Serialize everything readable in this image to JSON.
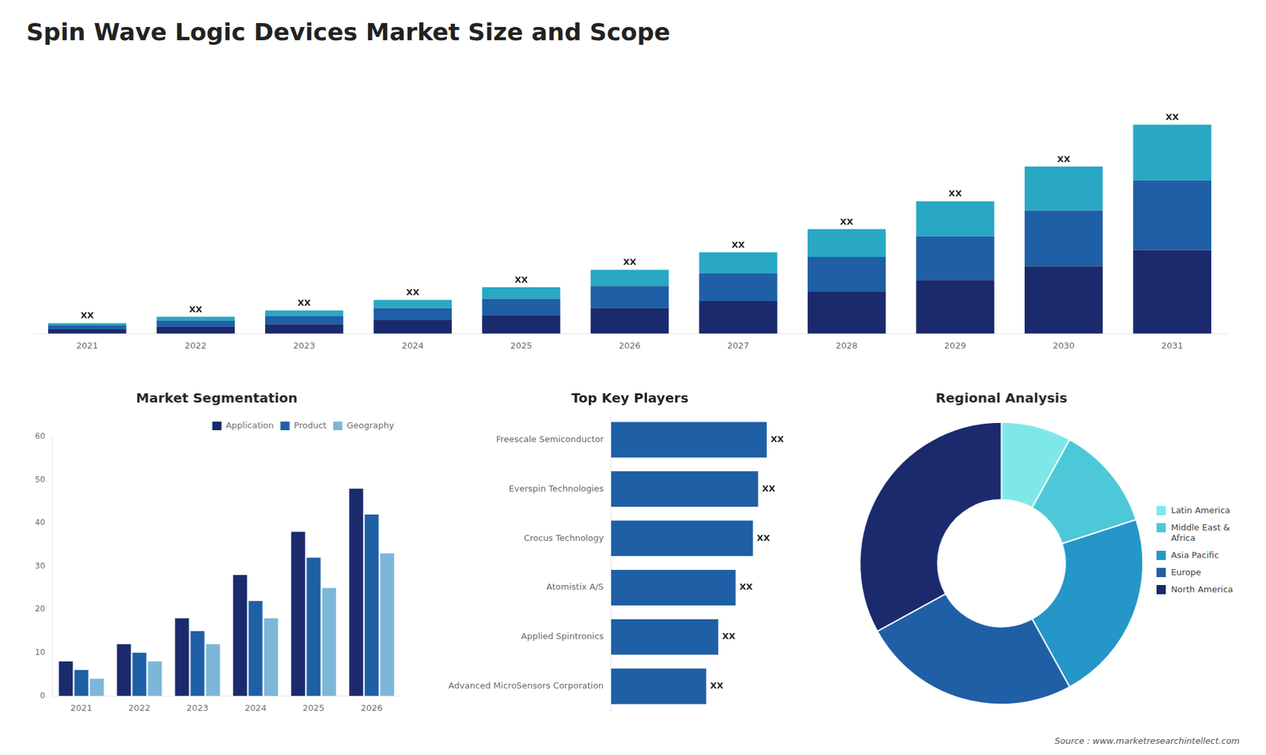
{
  "title": "Spin Wave Logic Devices Market Size and Scope",
  "annotations": [
    "Source : www.marketresearchintellect.com"
  ],
  "chart_data": [
    {
      "type": "bar",
      "categories": [
        "2021",
        "2022",
        "2023",
        "2024",
        "2025",
        "2026",
        "2027",
        "2028",
        "2029",
        "2030",
        "2031"
      ],
      "series": [
        {
          "color": "#1a2a6c",
          "values": [
            2,
            3,
            4,
            6,
            8,
            11,
            14,
            18,
            23,
            29,
            36
          ]
        },
        {
          "color": "#1f5fa6",
          "values": [
            1.5,
            2.5,
            3.5,
            5,
            7,
            9.5,
            12,
            15,
            19,
            24,
            30
          ]
        },
        {
          "color": "#29a8c4",
          "values": [
            1,
            1.8,
            2.5,
            3.5,
            5,
            7,
            9,
            12,
            15,
            19,
            24
          ],
          "value_labels": [
            "XX",
            "XX",
            "XX",
            "XX",
            "XX",
            "XX",
            "XX",
            "XX",
            "XX",
            "XX",
            "XX"
          ]
        }
      ],
      "stacked": true,
      "ylim": [
        0,
        112.5
      ],
      "tick_labels": "x",
      "grid": false
    },
    {
      "type": "bar",
      "title": "Market Segmentation",
      "categories": [
        "2021",
        "2022",
        "2023",
        "2024",
        "2025",
        "2026"
      ],
      "series": [
        {
          "name": "Application",
          "color": "#1a2a6c",
          "values": [
            8,
            12,
            18,
            28,
            38,
            48
          ]
        },
        {
          "name": "Product",
          "color": "#1f5fa6",
          "values": [
            6,
            10,
            15,
            22,
            32,
            42
          ]
        },
        {
          "name": "Geography",
          "color": "#7db6d8",
          "values": [
            4,
            8,
            12,
            18,
            25,
            33
          ]
        }
      ],
      "ylim": [
        0,
        60
      ],
      "yticks": [
        0,
        10,
        20,
        30,
        40,
        50,
        60
      ],
      "legend": "upper right",
      "grid": false
    },
    {
      "type": "bar",
      "title": "Top Key Players",
      "orientation": "horizontal",
      "categories": [
        "Freescale Semiconductor",
        "Everspin Technologies",
        "Crocus Technology",
        "Atomistix A/S",
        "Applied Spintronics",
        "Advanced MicroSensors Corporation"
      ],
      "values": [
        90,
        85,
        82,
        72,
        62,
        55
      ],
      "value_labels": [
        "XX",
        "XX",
        "XX",
        "XX",
        "XX",
        "XX"
      ],
      "color": "#1f5fa6",
      "xlim": [
        0,
        117
      ],
      "tick_labels": "y",
      "grid": false
    },
    {
      "type": "doughnut",
      "title": "Regional Analysis",
      "categories": [
        "Latin America",
        "Middle East &\nAfrica",
        "Asia Pacific",
        "Europe",
        "North America"
      ],
      "values": [
        8,
        12,
        22,
        25,
        33
      ],
      "colors": [
        "#7ee8e8",
        "#4dc8d8",
        "#2496c8",
        "#1f5fa6",
        "#1a2a6c"
      ],
      "legend": "right"
    }
  ]
}
